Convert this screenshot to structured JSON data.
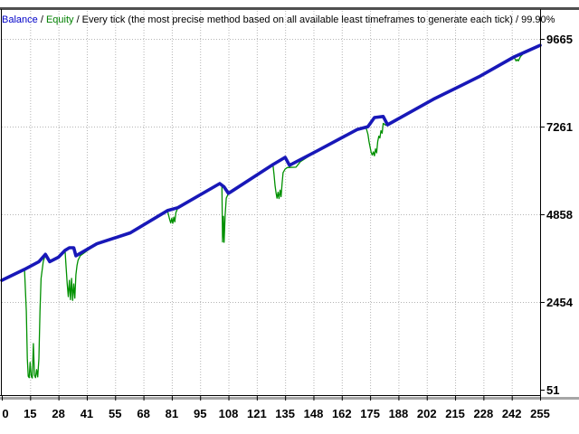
{
  "header": {
    "balance_label": "Balance",
    "separator": " / ",
    "equity_label": "Equity",
    "description": " / Every tick (the most precise method based on all available least timeframes to generate each tick) / 99.90%"
  },
  "colors": {
    "balance_line": "#1818b8",
    "balance_label": "#0000c8",
    "equity_line": "#009000",
    "grid": "#b4b4b4",
    "axis": "#000000",
    "frame": "#4f4f4f",
    "shadow_band": "#a6a6a6",
    "background": "#ffffff",
    "text": "#000000"
  },
  "chart_data": {
    "type": "line",
    "legend": [
      "Balance",
      "Equity"
    ],
    "legend_position": "top-left",
    "grid": "dotted",
    "modelling_quality": "99.90%",
    "x_ticks": [
      0,
      15,
      28,
      41,
      55,
      68,
      81,
      95,
      108,
      121,
      135,
      148,
      162,
      175,
      188,
      202,
      215,
      228,
      242,
      255
    ],
    "y_ticks": [
      9665,
      7261,
      4858,
      2454,
      51
    ],
    "xlabel": "",
    "ylabel": "",
    "y_range": {
      "min": 51,
      "max": 9665
    },
    "x_range": {
      "min": 0,
      "max": 255
    },
    "series": [
      {
        "name": "Balance",
        "color_key": "balance_line",
        "width": 3.6,
        "points": [
          [
            0,
            3050
          ],
          [
            12,
            3350
          ],
          [
            19,
            3560
          ],
          [
            22,
            3760
          ],
          [
            24,
            3560
          ],
          [
            28,
            3680
          ],
          [
            31,
            3870
          ],
          [
            33,
            3940
          ],
          [
            35,
            3940
          ],
          [
            36,
            3720
          ],
          [
            46,
            4050
          ],
          [
            62,
            4350
          ],
          [
            79,
            4960
          ],
          [
            84,
            5040
          ],
          [
            104,
            5700
          ],
          [
            106,
            5610
          ],
          [
            108,
            5430
          ],
          [
            129,
            6220
          ],
          [
            135,
            6420
          ],
          [
            137,
            6200
          ],
          [
            150,
            6600
          ],
          [
            169,
            7180
          ],
          [
            174,
            7260
          ],
          [
            177,
            7510
          ],
          [
            181,
            7540
          ],
          [
            183,
            7310
          ],
          [
            205,
            8010
          ],
          [
            226,
            8630
          ],
          [
            243,
            9170
          ],
          [
            248,
            9300
          ],
          [
            255,
            9490
          ]
        ]
      },
      {
        "name": "Equity",
        "color_key": "equity_line",
        "width": 1.3,
        "points": [
          [
            0,
            3050
          ],
          [
            12,
            3350
          ],
          [
            13,
            2200
          ],
          [
            13.5,
            900
          ],
          [
            14,
            420
          ],
          [
            14.5,
            380
          ],
          [
            15,
            800
          ],
          [
            15.5,
            420
          ],
          [
            16,
            370
          ],
          [
            16.5,
            1315
          ],
          [
            17,
            450
          ],
          [
            17.5,
            380
          ],
          [
            18,
            600
          ],
          [
            18.5,
            400
          ],
          [
            19,
            900
          ],
          [
            19.5,
            2200
          ],
          [
            20,
            3100
          ],
          [
            21,
            3560
          ],
          [
            22,
            3760
          ],
          [
            24,
            3560
          ],
          [
            28,
            3680
          ],
          [
            31,
            3870
          ],
          [
            31.5,
            3400
          ],
          [
            32,
            2950
          ],
          [
            32.5,
            2600
          ],
          [
            33,
            3050
          ],
          [
            33.5,
            2520
          ],
          [
            34,
            3100
          ],
          [
            34.5,
            2500
          ],
          [
            35,
            2950
          ],
          [
            35.5,
            2560
          ],
          [
            36,
            3200
          ],
          [
            36.5,
            3450
          ],
          [
            37,
            3600
          ],
          [
            38,
            3720
          ],
          [
            46,
            4050
          ],
          [
            62,
            4350
          ],
          [
            79,
            4960
          ],
          [
            80,
            4720
          ],
          [
            80.5,
            4620
          ],
          [
            81,
            4750
          ],
          [
            81.5,
            4610
          ],
          [
            82,
            4780
          ],
          [
            82.5,
            4650
          ],
          [
            83,
            4900
          ],
          [
            84,
            5040
          ],
          [
            104,
            5700
          ],
          [
            105,
            5620
          ],
          [
            105.3,
            4100
          ],
          [
            105.7,
            4800
          ],
          [
            106,
            4090
          ],
          [
            106.5,
            4850
          ],
          [
            107,
            5300
          ],
          [
            108,
            5430
          ],
          [
            129,
            6220
          ],
          [
            129.5,
            5950
          ],
          [
            130,
            5650
          ],
          [
            130.5,
            5450
          ],
          [
            131,
            5300
          ],
          [
            131.5,
            5460
          ],
          [
            132,
            5290
          ],
          [
            132.5,
            5520
          ],
          [
            133,
            5340
          ],
          [
            133.5,
            5700
          ],
          [
            134,
            6000
          ],
          [
            135,
            6100
          ],
          [
            136,
            6140
          ],
          [
            140,
            6150
          ],
          [
            142,
            6300
          ],
          [
            150,
            6600
          ],
          [
            169,
            7180
          ],
          [
            173,
            7260
          ],
          [
            174,
            7050
          ],
          [
            174.5,
            6850
          ],
          [
            175,
            6700
          ],
          [
            175.5,
            6550
          ],
          [
            176,
            6480
          ],
          [
            176.5,
            6570
          ],
          [
            177,
            6460
          ],
          [
            177.5,
            6650
          ],
          [
            178,
            6540
          ],
          [
            178.5,
            6850
          ],
          [
            179,
            7000
          ],
          [
            179.5,
            6950
          ],
          [
            180,
            7150
          ],
          [
            180.5,
            7080
          ],
          [
            181,
            7350
          ],
          [
            182,
            7300
          ],
          [
            183,
            7310
          ],
          [
            205,
            8010
          ],
          [
            226,
            8630
          ],
          [
            243,
            9170
          ],
          [
            244,
            9060
          ],
          [
            244.5,
            9100
          ],
          [
            245,
            9060
          ],
          [
            246,
            9180
          ],
          [
            248,
            9300
          ],
          [
            255,
            9490
          ]
        ]
      }
    ]
  }
}
